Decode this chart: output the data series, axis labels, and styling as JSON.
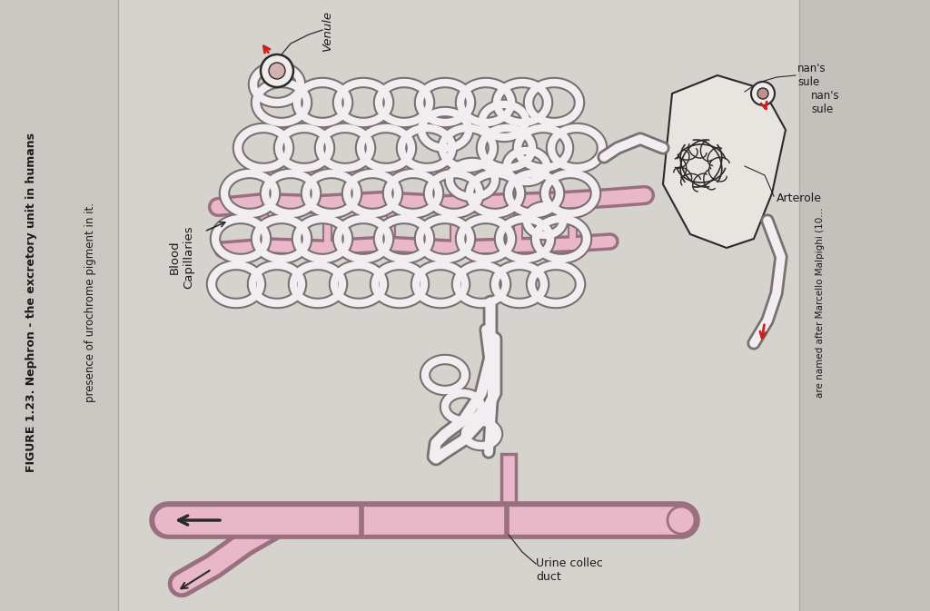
{
  "bg_color": "#cccac6",
  "page_color": "#d8d5d0",
  "right_bar_color": "#c0bcb8",
  "line_color": "#2a2a2a",
  "tube_fill": "#f0eaee",
  "tube_outline": "#6a6a6a",
  "pink_fill": "#e8b8c8",
  "pink_outline": "#b87890",
  "arrow_red": "#cc2020",
  "text_color": "#1a1a1a",
  "glom_fill": "#e8e4e0",
  "glom_inner": "#c8c0bc",
  "title_bold": "FIGURE 1.23. Nephron - the excretory unit in humans",
  "subtitle": "presence of urochrome pigment in it.",
  "right_text1": "are named after Marcello Malpighi (10...",
  "label_venule": "Venule",
  "label_blood": "Blood\nCapillaries",
  "label_arterole": "Arterole",
  "label_bowmans": "nan's\nsule",
  "label_urine": "Urine collec\nduct"
}
